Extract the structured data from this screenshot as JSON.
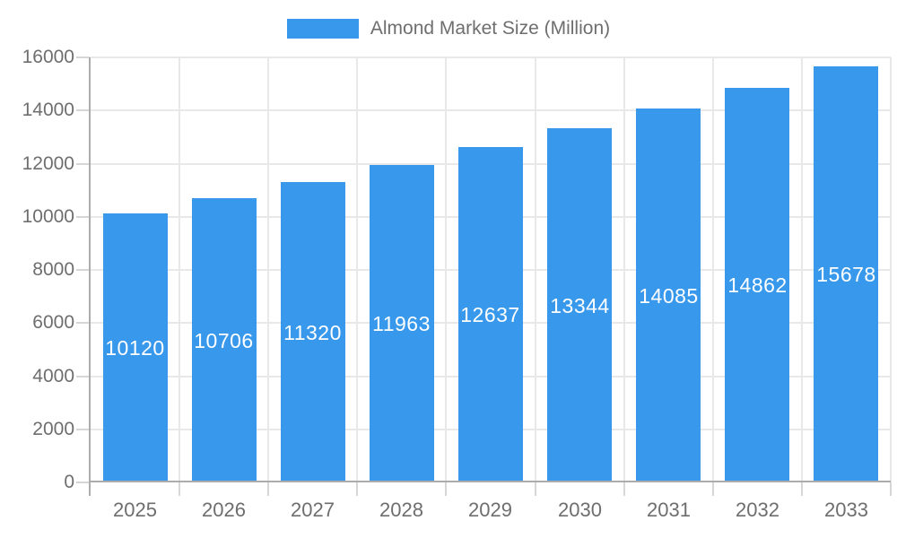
{
  "chart_data": {
    "type": "bar",
    "legend": "Almond Market Size (Million)",
    "legend_position": "top",
    "categories": [
      "2025",
      "2026",
      "2027",
      "2028",
      "2029",
      "2030",
      "2031",
      "2032",
      "2033"
    ],
    "values": [
      10120,
      10706,
      11320,
      11963,
      12637,
      13344,
      14085,
      14862,
      15678
    ],
    "xlabel": "",
    "ylabel": "",
    "ylim": [
      0,
      16000
    ],
    "y_tick_step": 2000,
    "y_ticks": [
      0,
      2000,
      4000,
      6000,
      8000,
      10000,
      12000,
      14000,
      16000
    ],
    "grid": true,
    "value_labels_shown": true,
    "colors": {
      "bar": "#3898EC",
      "value_label": "#FFFFFF",
      "axis_line": "#ACACAC",
      "gridline": "#E8E8E8",
      "tick": "#D6D6D6",
      "label_text": "#6E6E6E",
      "background": "#FFFFFF"
    }
  }
}
